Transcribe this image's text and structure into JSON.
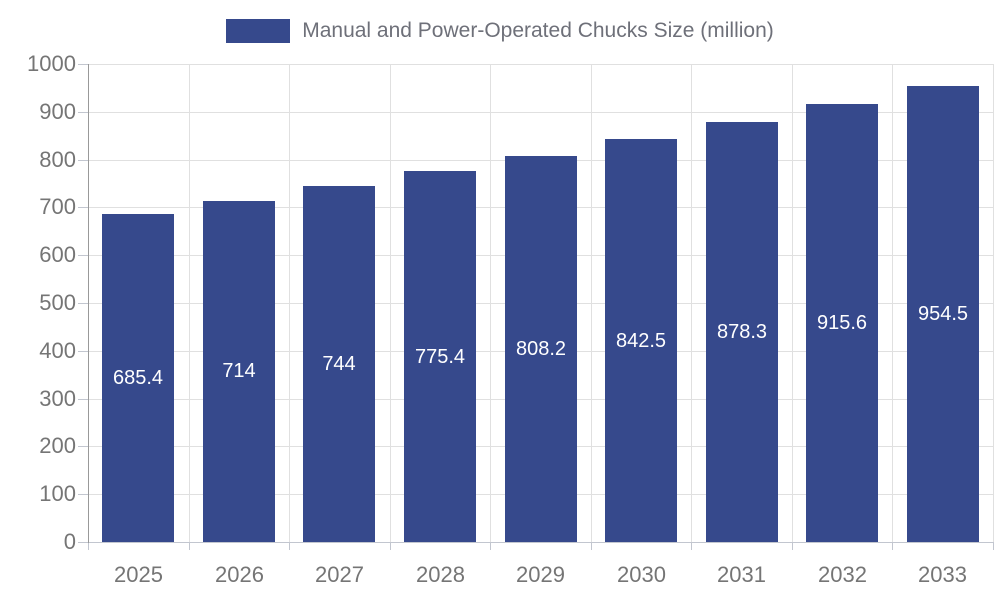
{
  "legend": {
    "label": "Manual and Power-Operated Chucks Size (million)"
  },
  "colors": {
    "bar": "#36498C",
    "grid": "#E0E0E0",
    "y_axis_line": "#999999",
    "x_axis_line": "#C2C6CF",
    "tick": "#C2C6CF",
    "axis_label": "#757575",
    "legend_text": "#6E7079",
    "value_label": "#FFFFFF",
    "background": "#FFFFFF"
  },
  "chart_data": {
    "type": "bar",
    "title": "Manual and Power-Operated Chucks Size (million)",
    "categories": [
      "2025",
      "2026",
      "2027",
      "2028",
      "2029",
      "2030",
      "2031",
      "2032",
      "2033"
    ],
    "values": [
      685.4,
      714,
      744,
      775.4,
      808.2,
      842.5,
      878.3,
      915.6,
      954.5
    ],
    "value_labels": [
      "685.4",
      "714",
      "744",
      "775.4",
      "808.2",
      "842.5",
      "878.3",
      "915.6",
      "954.5"
    ],
    "xlabel": "",
    "ylabel": "",
    "ylim": [
      0,
      1000
    ],
    "y_ticks": [
      0,
      100,
      200,
      300,
      400,
      500,
      600,
      700,
      800,
      900,
      1000
    ],
    "grid": true,
    "legend_position": "top",
    "bar_label_position": "inside-center"
  }
}
